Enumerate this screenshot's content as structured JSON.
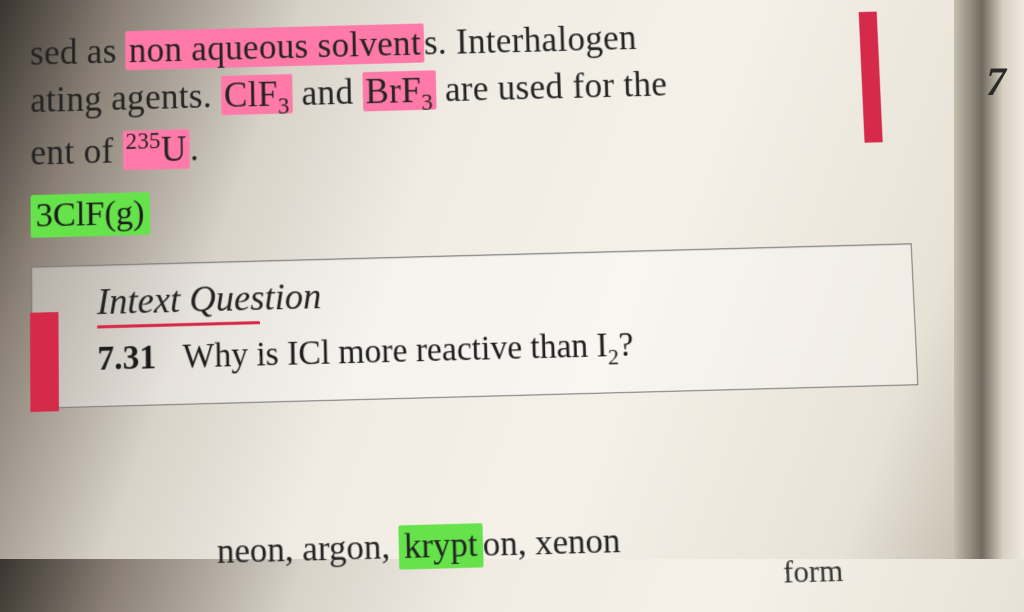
{
  "right_page_number": "7",
  "para": {
    "line1_a": "sed as ",
    "line1_b": "non aqueous solvent",
    "line1_c": "s. Interhalogen",
    "line2_a": "ating agents. ",
    "clf3": "ClF",
    "clf3_sub": "3",
    "line2_b": " and ",
    "brf3": "BrF",
    "brf3_sub": "3",
    "line2_c": " are used for the",
    "line3_a": "ent of ",
    "u_sup": "235",
    "u_sym": "U",
    "line3_b": "."
  },
  "equation": {
    "text": "3ClF(g)"
  },
  "question_box": {
    "heading": "Intext Question",
    "number": "7.31",
    "text_a": "Why is ICl more reactive than I",
    "i2_sub": "2",
    "text_b": "?"
  },
  "bottom": {
    "frag_a": "neon, argon, ",
    "frag_b": "krypt",
    "frag_c": "on, xenon",
    "frag2": "form"
  },
  "colors": {
    "pink": "#ff7aa8",
    "green": "#66e24a",
    "red": "#d62a4a"
  }
}
